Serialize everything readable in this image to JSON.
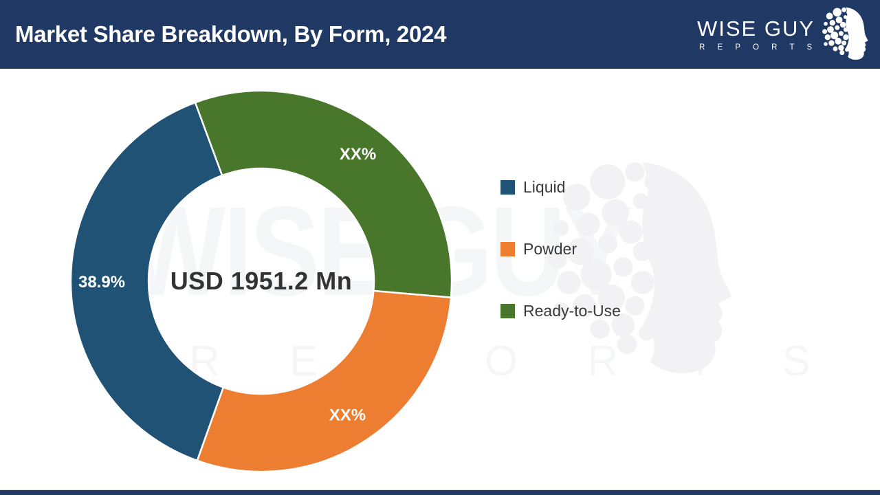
{
  "header": {
    "title": "Market Share Breakdown, By Form, 2024",
    "bg_color": "#203864",
    "logo": {
      "line1": "WISE GUY",
      "line2": "R E P O R T S"
    }
  },
  "watermark": {
    "line1": "WISE GUY",
    "line2": "R E P O R T S"
  },
  "chart_data": {
    "type": "pie",
    "donut": true,
    "title": "Market Share Breakdown, By Form, 2024",
    "center_label": "USD 1951.2 Mn",
    "start_angle_deg": -20.3,
    "direction": "clockwise",
    "units": "percent of market share",
    "segments": [
      {
        "name": "Ready-to-Use",
        "value_pct": 32.0,
        "displayed_label": "XX%",
        "color": "#48762A"
      },
      {
        "name": "Powder",
        "value_pct": 29.1,
        "displayed_label": "XX%",
        "color": "#ED7D31"
      },
      {
        "name": "Liquid",
        "value_pct": 38.9,
        "displayed_label": "38.9%",
        "color": "#1F5274"
      }
    ],
    "legend": {
      "position": "right",
      "items": [
        {
          "label": "Liquid",
          "color": "#1F5274"
        },
        {
          "label": "Powder",
          "color": "#ED7D31"
        },
        {
          "label": "Ready-to-Use",
          "color": "#48762A"
        }
      ]
    }
  },
  "footer": {
    "bg_color": "#203864"
  }
}
